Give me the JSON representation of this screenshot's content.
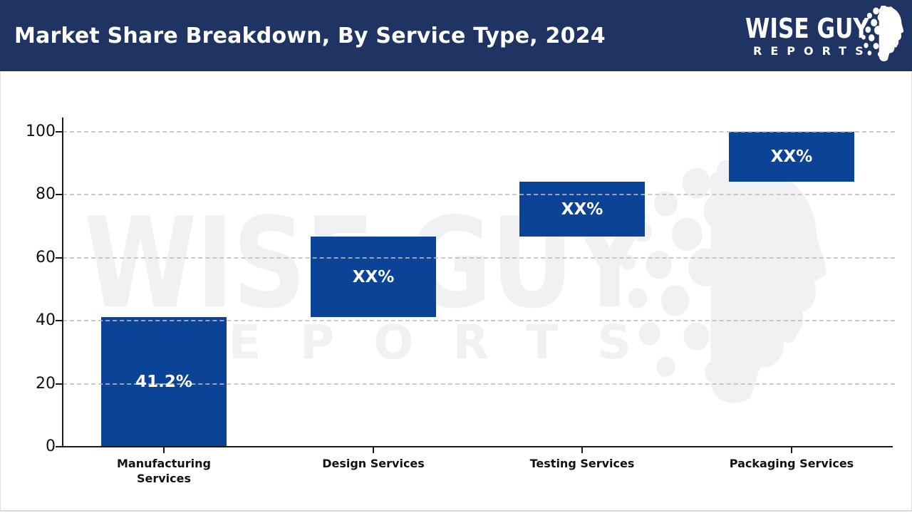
{
  "header": {
    "title": "Market Share Breakdown, By Service Type, 2024",
    "logo": {
      "line1": "WISE GUY",
      "line2": "REPORTS"
    }
  },
  "watermark": {
    "line1": "WISE GUY",
    "line2": "REPORTS"
  },
  "chart_data": {
    "type": "bar",
    "subtype": "waterfall",
    "title": "Market Share Breakdown, By Service Type, 2024",
    "categories": [
      "Manufacturing Services",
      "Design Services",
      "Testing Services",
      "Packaging Services"
    ],
    "category_label_lines": [
      [
        "Manufacturing",
        "Services"
      ],
      [
        "Design Services"
      ],
      [
        "Testing Services"
      ],
      [
        "Packaging Services"
      ]
    ],
    "segments": [
      {
        "category": "Manufacturing Services",
        "start": 0,
        "end": 41.2,
        "label": "41.2%"
      },
      {
        "category": "Design Services",
        "start": 41.2,
        "end": 66.7,
        "label": "XX%"
      },
      {
        "category": "Testing Services",
        "start": 66.7,
        "end": 84.2,
        "label": "XX%"
      },
      {
        "category": "Packaging Services",
        "start": 84.2,
        "end": 100,
        "label": "XX%"
      }
    ],
    "xlabel": "",
    "ylabel": "",
    "ylim": [
      0,
      100
    ],
    "yticks": [
      0,
      20,
      40,
      60,
      80,
      100
    ],
    "grid": true,
    "grid_style": "dashed",
    "legend": false,
    "bar_color": "#0b4397"
  },
  "colors": {
    "header_bg": "#1f3462",
    "bar": "#0b4397",
    "bar_label": "#ffffff",
    "axis": "#1a1a1a",
    "grid": "#bdbdbd",
    "watermark": "#f1f1f3",
    "footer_rule": "#d9d9d9"
  }
}
